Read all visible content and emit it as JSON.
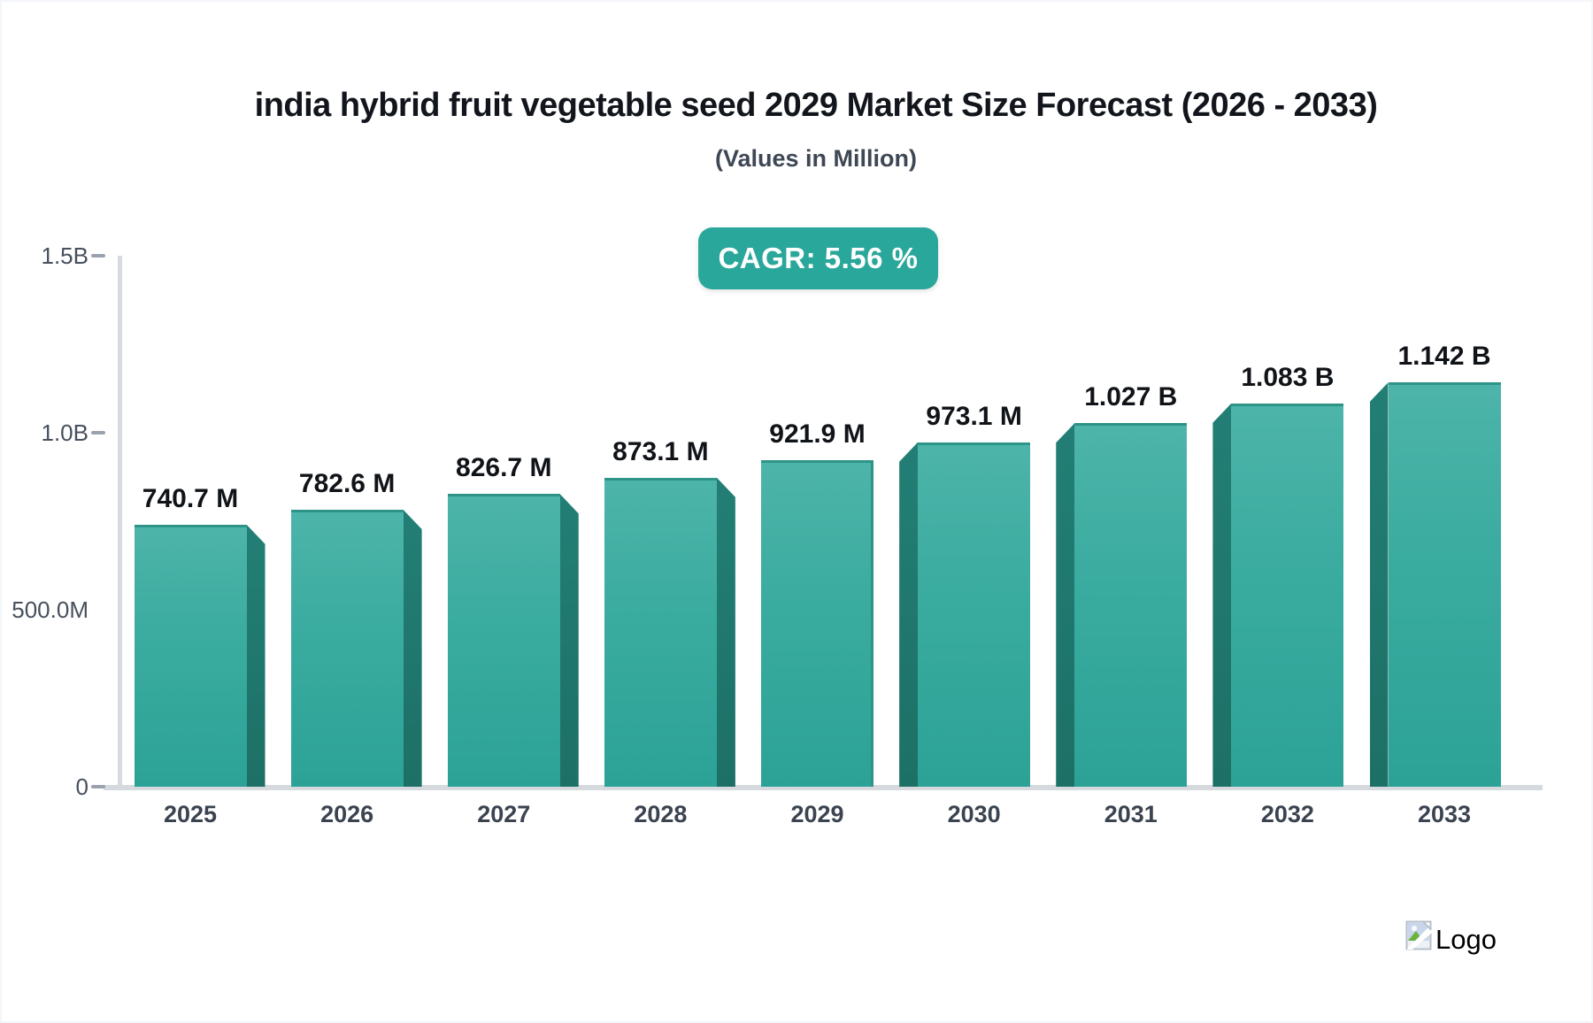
{
  "header": {
    "title": "india hybrid fruit vegetable seed 2029 Market Size Forecast (2026 - 2033)",
    "subtitle": "(Values in Million)"
  },
  "cagr_badge": {
    "label": "CAGR: 5.56 %"
  },
  "chart_data": {
    "type": "bar",
    "title": "india hybrid fruit vegetable seed 2029 Market Size Forecast (2026 - 2033)",
    "subtitle": "(Values in Million)",
    "categories": [
      "2025",
      "2026",
      "2027",
      "2028",
      "2029",
      "2030",
      "2031",
      "2032",
      "2033"
    ],
    "values_millions": [
      740.7,
      782.6,
      826.7,
      873.1,
      921.9,
      973.1,
      1027,
      1083,
      1142
    ],
    "bar_labels": [
      "740.7 M",
      "782.6 M",
      "826.7 M",
      "873.1 M",
      "921.9 M",
      "973.1 M",
      "1.027 B",
      "1.083 B",
      "1.142 B"
    ],
    "xlabel": "",
    "ylabel": "",
    "ylim_millions": [
      0,
      1500
    ],
    "grid": false,
    "legend": "none",
    "style": "3d-teal-bars",
    "cagr_percent": 5.56
  },
  "y_axis": {
    "ticks": [
      {
        "label": "1.5B",
        "value_millions": 1500,
        "dash": true
      },
      {
        "label": "1.0B",
        "value_millions": 1000,
        "dash": true
      },
      {
        "label": "500.0M",
        "value_millions": 500,
        "dash": false
      },
      {
        "label": "0",
        "value_millions": 0,
        "dash": true
      }
    ]
  },
  "footer": {
    "logo_alt": "Logo"
  },
  "colors": {
    "accent_teal": "#2aa79b",
    "bar_face_top": "#4db4a9",
    "bar_face_bottom": "#2ca296",
    "bar_side_dark": "#1f7a70",
    "axis_gray": "#d6d9dd",
    "tick_gray": "#9aa2ad",
    "label_dark": "#101317",
    "axis_text": "#47505c"
  }
}
